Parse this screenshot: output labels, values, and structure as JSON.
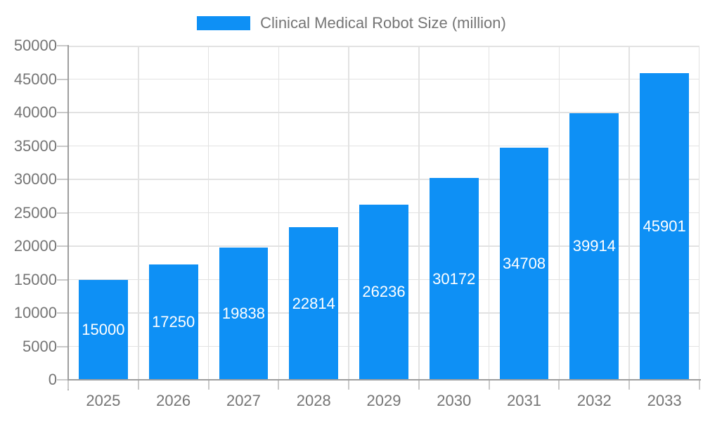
{
  "legend": {
    "label": "Clinical Medical Robot Size (million)"
  },
  "colors": {
    "bar": "#0e90f5",
    "grid": "#e2e2e2",
    "axis": "#9e9e9e",
    "tick": "#c9c9c9",
    "text": "#757575",
    "value_label": "#ffffff",
    "background": "#ffffff"
  },
  "chart_data": {
    "type": "bar",
    "title": "Clinical Medical Robot Size (million)",
    "categories": [
      "2025",
      "2026",
      "2027",
      "2028",
      "2029",
      "2030",
      "2031",
      "2032",
      "2033"
    ],
    "values": [
      15000,
      17250,
      19838,
      22814,
      26236,
      30172,
      34708,
      39914,
      45901
    ],
    "xlabel": "",
    "ylabel": "",
    "ylim": [
      0,
      50000
    ],
    "ytick_step": 5000,
    "yticks": [
      0,
      5000,
      10000,
      15000,
      20000,
      25000,
      30000,
      35000,
      40000,
      45000,
      50000
    ],
    "grid": true,
    "grid_vertical": true,
    "legend_position": "top-center",
    "value_labels": "inside-center-white"
  }
}
